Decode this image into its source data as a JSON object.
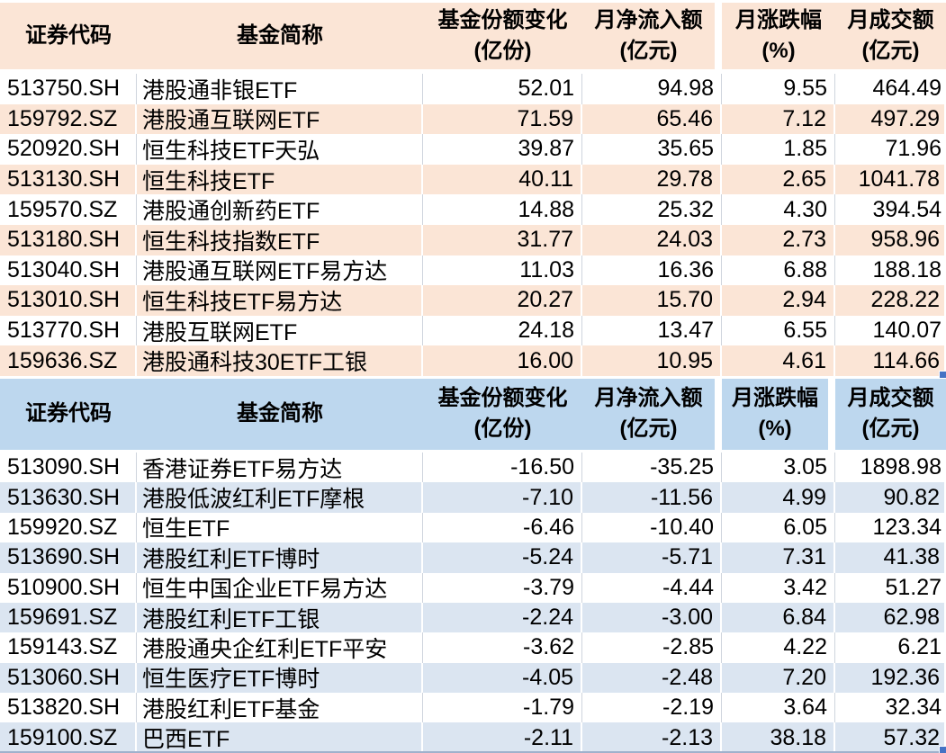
{
  "colors": {
    "peach": "#FBE5D6",
    "blue-header": "#BDD7EE",
    "blue-stripe": "#DBE5F1",
    "grid": "#CFD5DD",
    "selection-line": "#9FB1CC",
    "fill-handle": "#4472C4"
  },
  "columns": [
    {
      "label": "证券代码",
      "unit": ""
    },
    {
      "label": "基金简称",
      "unit": ""
    },
    {
      "label": "基金份额变化",
      "unit": "(亿份)"
    },
    {
      "label": "月净流入额",
      "unit": "(亿元)"
    },
    {
      "label": "月涨跌幅",
      "unit": "(%)"
    },
    {
      "label": "月成交额",
      "unit": "(亿元)"
    }
  ],
  "chart_data": [
    {
      "type": "table",
      "theme": "peach",
      "columns": [
        "证券代码",
        "基金简称",
        "基金份额变化(亿份)",
        "月净流入额(亿元)",
        "月涨跌幅(%)",
        "月成交额(亿元)"
      ],
      "rows": [
        [
          "513750.SH",
          "港股通非银ETF",
          "52.01",
          "94.98",
          "9.55",
          "464.49"
        ],
        [
          "159792.SZ",
          "港股通互联网ETF",
          "71.59",
          "65.46",
          "7.12",
          "497.29"
        ],
        [
          "520920.SH",
          "恒生科技ETF天弘",
          "39.87",
          "35.65",
          "1.85",
          "71.96"
        ],
        [
          "513130.SH",
          "恒生科技ETF",
          "40.11",
          "29.78",
          "2.65",
          "1041.78"
        ],
        [
          "159570.SZ",
          "港股通创新药ETF",
          "14.88",
          "25.32",
          "4.30",
          "394.54"
        ],
        [
          "513180.SH",
          "恒生科技指数ETF",
          "31.77",
          "24.03",
          "2.73",
          "958.96"
        ],
        [
          "513040.SH",
          "港股通互联网ETF易方达",
          "11.03",
          "16.36",
          "6.88",
          "188.18"
        ],
        [
          "513010.SH",
          "恒生科技ETF易方达",
          "20.27",
          "15.70",
          "2.94",
          "228.22"
        ],
        [
          "513770.SH",
          "港股互联网ETF",
          "24.18",
          "13.47",
          "6.55",
          "140.07"
        ],
        [
          "159636.SZ",
          "港股通科技30ETF工银",
          "16.00",
          "10.95",
          "4.61",
          "114.66"
        ]
      ]
    },
    {
      "type": "table",
      "theme": "blue",
      "columns": [
        "证券代码",
        "基金简称",
        "基金份额变化(亿份)",
        "月净流入额(亿元)",
        "月涨跌幅(%)",
        "月成交额(亿元)"
      ],
      "rows": [
        [
          "513090.SH",
          "香港证券ETF易方达",
          "-16.50",
          "-35.25",
          "3.05",
          "1898.98"
        ],
        [
          "513630.SH",
          "港股低波红利ETF摩根",
          "-7.10",
          "-11.56",
          "4.99",
          "90.82"
        ],
        [
          "159920.SZ",
          "恒生ETF",
          "-6.46",
          "-10.40",
          "6.05",
          "123.34"
        ],
        [
          "513690.SH",
          "港股红利ETF博时",
          "-5.24",
          "-5.71",
          "7.31",
          "41.38"
        ],
        [
          "510900.SH",
          "恒生中国企业ETF易方达",
          "-3.79",
          "-4.44",
          "3.42",
          "51.27"
        ],
        [
          "159691.SZ",
          "港股红利ETF工银",
          "-2.24",
          "-3.00",
          "6.84",
          "62.98"
        ],
        [
          "159143.SZ",
          "港股通央企红利ETF平安",
          "-3.62",
          "-2.85",
          "4.22",
          "6.21"
        ],
        [
          "513060.SH",
          "恒生医疗ETF博时",
          "-4.05",
          "-2.48",
          "7.20",
          "192.36"
        ],
        [
          "513820.SH",
          "港股红利ETF基金",
          "-1.79",
          "-2.19",
          "3.64",
          "32.34"
        ],
        [
          "159100.SZ",
          "巴西ETF",
          "-2.11",
          "-2.13",
          "38.18",
          "57.32"
        ]
      ]
    }
  ]
}
